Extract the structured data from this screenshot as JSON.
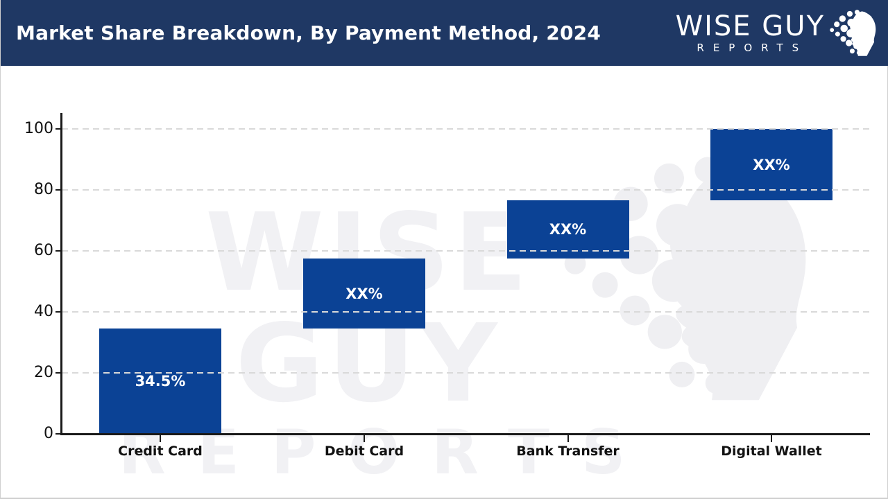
{
  "header": {
    "title": "Market Share Breakdown, By Payment Method, 2024",
    "bg_color": "#1f3864",
    "brand": {
      "line1": "WISE GUY",
      "line2": "REPORTS"
    }
  },
  "watermark": {
    "line1": "WISE GUY",
    "line2": "REPORTS"
  },
  "chart_data": {
    "type": "bar",
    "variant": "waterfall",
    "title": "Market Share Breakdown, By Payment Method, 2024",
    "categories": [
      "Credit Card",
      "Debit Card",
      "Bank Transfer",
      "Digital Wallet"
    ],
    "segments": [
      {
        "category": "Credit Card",
        "start": 0,
        "end": 34.5,
        "label": "34.5%"
      },
      {
        "category": "Debit Card",
        "start": 34.5,
        "end": 57.5,
        "label": "XX%"
      },
      {
        "category": "Bank Transfer",
        "start": 57.5,
        "end": 76.5,
        "label": "XX%"
      },
      {
        "category": "Digital Wallet",
        "start": 76.5,
        "end": 100,
        "label": "XX%"
      }
    ],
    "xlabel": "",
    "ylabel": "",
    "ylim": [
      0,
      105
    ],
    "yticks": [
      0,
      20,
      40,
      60,
      80,
      100
    ],
    "grid": "horizontal-dashed-over-bars",
    "legend": "none",
    "bar_color": "#0b4295",
    "bar_label_color": "#ffffff",
    "gridline_color": "#d9d9d9",
    "axis_color": "#1a1a1a"
  }
}
